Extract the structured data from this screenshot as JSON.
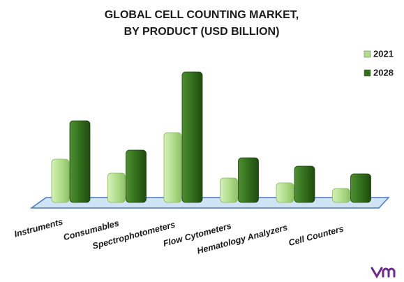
{
  "chart_data": {
    "type": "bar",
    "title": [
      "GLOBAL CELL COUNTING MARKET,",
      "BY PRODUCT (USD BILLION)"
    ],
    "categories": [
      "Instruments",
      "Consumables",
      "Spectrophotometers",
      "Flow Cytometers",
      "Hematology Analyzers",
      "Cell Counters"
    ],
    "series": [
      {
        "name": "2021",
        "color": "#b3de8c",
        "values": [
          6.2,
          4.2,
          10.0,
          3.5,
          2.8,
          2.0
        ]
      },
      {
        "name": "2028",
        "color": "#336f1c",
        "values": [
          11.7,
          7.5,
          18.7,
          6.4,
          5.2,
          4.1
        ]
      }
    ],
    "ylim": [
      0,
      20
    ],
    "legend": "top-right"
  }
}
